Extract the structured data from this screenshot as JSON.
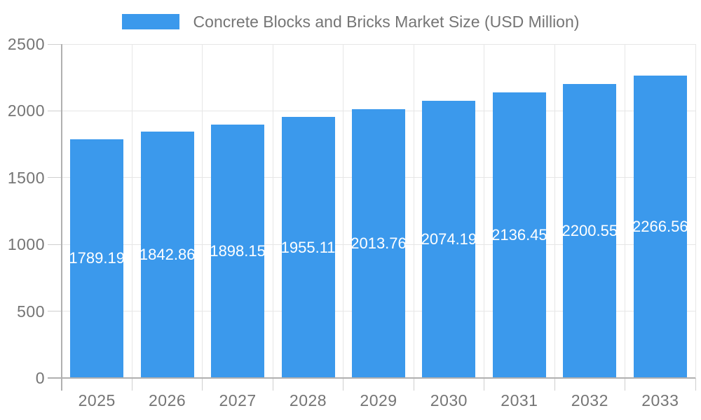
{
  "chart_data": {
    "type": "bar",
    "title": "Concrete Blocks and Bricks Market Size (USD Million)",
    "categories": [
      "2025",
      "2026",
      "2027",
      "2028",
      "2029",
      "2030",
      "2031",
      "2032",
      "2033"
    ],
    "values": [
      1789.19,
      1842.86,
      1898.15,
      1955.11,
      2013.76,
      2074.19,
      2136.45,
      2200.55,
      2266.56
    ],
    "value_labels": [
      "1789.19",
      "1842.86",
      "1898.15",
      "1955.11",
      "2013.76",
      "2074.19",
      "2136.45",
      "2200.55",
      "2266.56"
    ],
    "yticks": [
      "0",
      "500",
      "1000",
      "1500",
      "2000",
      "2500"
    ],
    "ytick_values": [
      0,
      500,
      1000,
      1500,
      2000,
      2500
    ],
    "ylim": [
      0,
      2500
    ],
    "grid": true,
    "legend_position": "top",
    "xlabel": "",
    "ylabel": "",
    "colors": {
      "bar": "#3b99ec",
      "bar_label": "#ffffff",
      "text": "#757575",
      "axis": "#b0b0b0",
      "gridline": "#e6e6e6",
      "tick": "#cfcfcf",
      "background": "#ffffff"
    }
  }
}
